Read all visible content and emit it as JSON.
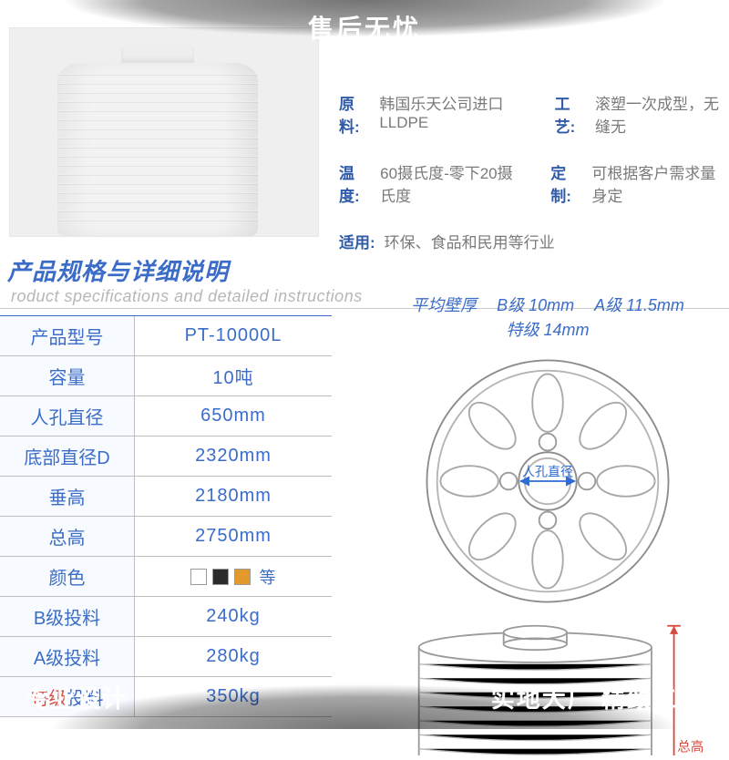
{
  "banners": {
    "top": "售后无忧",
    "bottom_left": "专业设计",
    "bottom_right": "实地大厂   精致工艺"
  },
  "info": {
    "row1": [
      {
        "k": "原料:",
        "v": "韩国乐天公司进口LLDPE"
      },
      {
        "k": "工艺:",
        "v": "滚塑一次成型，无缝无"
      }
    ],
    "row2": [
      {
        "k": "温度:",
        "v": "60摄氏度-零下20摄氏度"
      },
      {
        "k": "定制:",
        "v": "可根据客户需求量身定"
      }
    ],
    "row3": [
      {
        "k": "适用:",
        "v": "环保、食品和民用等行业"
      }
    ]
  },
  "section": {
    "zh": "产品规格与详细说明",
    "en": "roduct specifications and detailed instructions"
  },
  "wall": {
    "line1_a": "平均壁厚",
    "line1_b": "B级  10mm",
    "line1_c": "A级  11.5mm",
    "line2": "特级  14mm"
  },
  "spec": {
    "rows": [
      {
        "th": "产品型号",
        "td": "PT-10000L"
      },
      {
        "th": "容量",
        "td": "10吨"
      },
      {
        "th": "人孔直径",
        "td": "650mm"
      },
      {
        "th": "底部直径D",
        "td": "2320mm"
      },
      {
        "th": "垂高",
        "td": "2180mm"
      },
      {
        "th": "总高",
        "td": "2750mm"
      }
    ],
    "color_row": {
      "th": "颜色",
      "swatches": [
        "#ffffff",
        "#2b2b2b",
        "#e39a2d"
      ],
      "suffix": "等"
    },
    "material_rows": [
      {
        "th": "B级投料",
        "td": "240kg",
        "cls": ""
      },
      {
        "th": "A级投料",
        "td": "280kg",
        "cls": ""
      },
      {
        "th": "特级投料",
        "td": "350kg",
        "cls": "red"
      }
    ]
  },
  "diagram": {
    "manhole_label": "人孔直径",
    "total_height_label": "总高"
  },
  "colors": {
    "blue": "#3b6cc7",
    "heading_blue": "#3b6cc7",
    "text_gray": "#7a7a7a",
    "red": "#d94a3e",
    "diagram_stroke": "#a8a8a8",
    "diagram_stroke_dark": "#7d7d7d",
    "dim_line": "#2e6bd6"
  }
}
